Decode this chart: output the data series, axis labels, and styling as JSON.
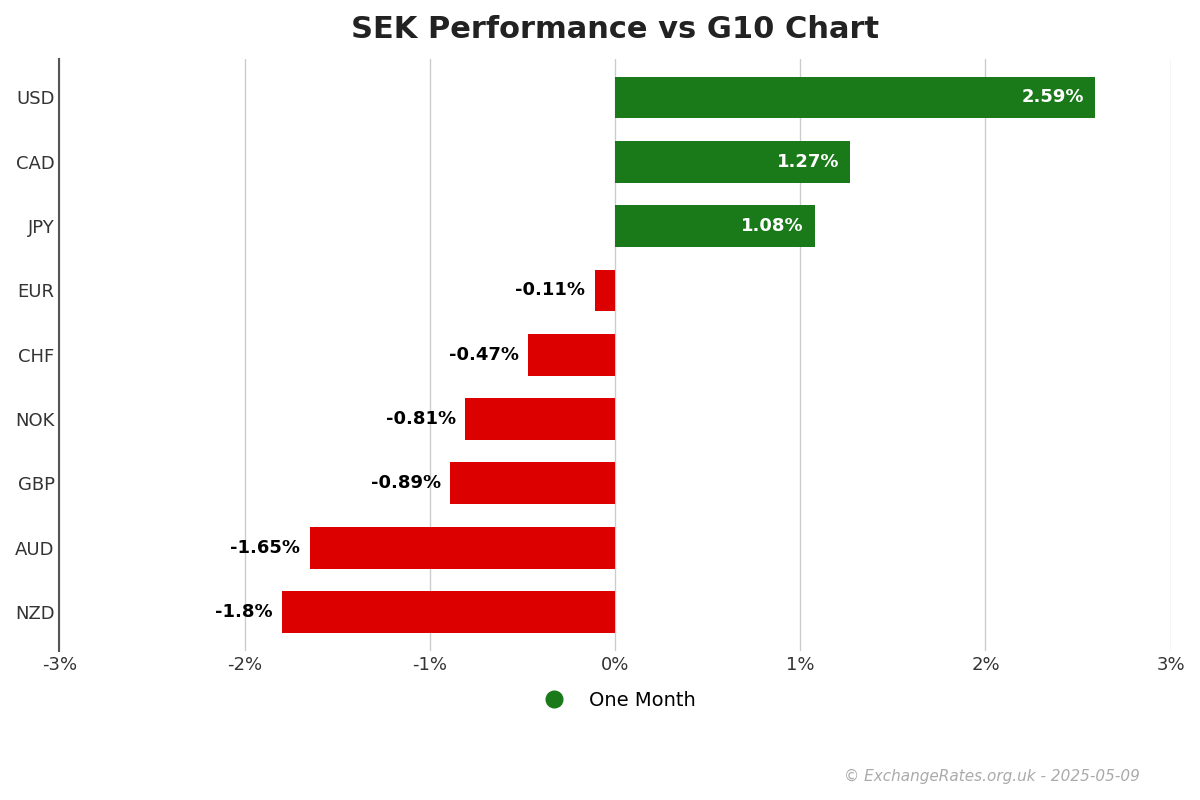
{
  "title": "SEK Performance vs G10 Chart",
  "currencies": [
    "USD",
    "CAD",
    "JPY",
    "EUR",
    "CHF",
    "NOK",
    "GBP",
    "AUD",
    "NZD"
  ],
  "values": [
    2.59,
    1.27,
    1.08,
    -0.11,
    -0.47,
    -0.81,
    -0.89,
    -1.65,
    -1.8
  ],
  "labels": [
    "2.59%",
    "1.27%",
    "1.08%",
    "-0.11%",
    "-0.47%",
    "-0.81%",
    "-0.89%",
    "-1.65%",
    "-1.8%"
  ],
  "positive_color": "#1a7a1a",
  "negative_color": "#dd0000",
  "background_color": "#ffffff",
  "xlim": [
    -3,
    3
  ],
  "xticks": [
    -3,
    -2,
    -1,
    0,
    1,
    2,
    3
  ],
  "xtick_labels": [
    "-3%",
    "-2%",
    "-1%",
    "0%",
    "1%",
    "2%",
    "3%"
  ],
  "grid_color": "#cccccc",
  "title_fontsize": 22,
  "label_fontsize": 13,
  "tick_fontsize": 13,
  "legend_label": "One Month",
  "legend_color": "#1a7a1a",
  "copyright_text": "© ExchangeRates.org.uk - 2025-05-09",
  "copyright_color": "#aaaaaa",
  "copyright_fontsize": 11,
  "bar_height": 0.65
}
